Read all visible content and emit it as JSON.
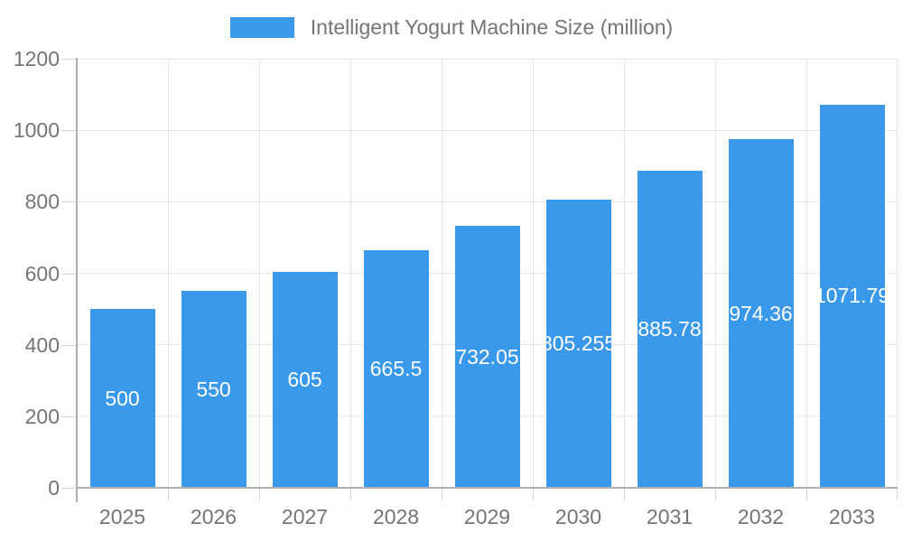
{
  "chart_data": {
    "type": "bar",
    "title": "Intelligent Yogurt Machine Size (million)",
    "categories": [
      "2025",
      "2026",
      "2027",
      "2028",
      "2029",
      "2030",
      "2031",
      "2032",
      "2033"
    ],
    "values": [
      500,
      550,
      605,
      665.5,
      732.05,
      805.255,
      885.78,
      974.36,
      1071.79
    ],
    "value_labels": [
      "500",
      "550",
      "605",
      "665.5",
      "732.05",
      "805.255",
      "885.78",
      "974.36",
      "1071.79"
    ],
    "xlabel": "",
    "ylabel": "",
    "ylim": [
      0,
      1200
    ],
    "y_ticks": [
      0,
      200,
      400,
      600,
      800,
      1000,
      1200
    ],
    "grid": true,
    "legend_position": "top-center",
    "value_label_position": "inside-center",
    "colors": {
      "bar": "#3B99EC",
      "bar_value_text": "#ffffff",
      "axis_text": "#757575",
      "grid": "#e6e6e6",
      "axis_line": "#b0b0b0",
      "tick": "#d4d4d4",
      "background": "#ffffff"
    }
  }
}
